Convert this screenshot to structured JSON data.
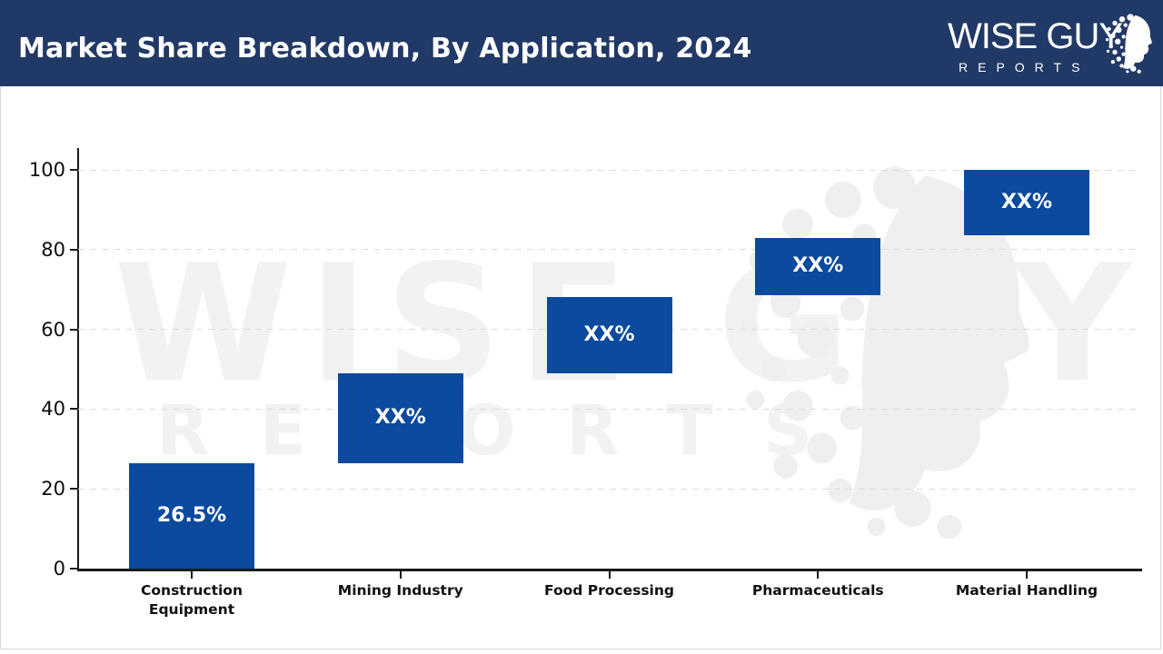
{
  "header": {
    "title": "Market Share Breakdown, By Application, 2024",
    "brand": {
      "line1": "WISE GUY",
      "line2": "REPORTS"
    }
  },
  "watermark": {
    "line1": "WISE GUY",
    "line2": "REPORTS"
  },
  "chart_data": {
    "type": "bar",
    "subtype": "waterfall-floating-bars",
    "title": "Market Share Breakdown, By Application, 2024",
    "categories": [
      "Construction Equipment",
      "Mining Industry",
      "Food Processing",
      "Pharmaceuticals",
      "Material Handling"
    ],
    "bars": [
      {
        "category": "Construction Equipment",
        "start": 0,
        "end": 26.5,
        "label": "26.5%"
      },
      {
        "category": "Mining Industry",
        "start": 26.5,
        "end": 49,
        "label": "XX%"
      },
      {
        "category": "Food Processing",
        "start": 49,
        "end": 68,
        "label": "XX%"
      },
      {
        "category": "Pharmaceuticals",
        "start": 68.5,
        "end": 83,
        "label": "XX%"
      },
      {
        "category": "Material Handling",
        "start": 83.5,
        "end": 100,
        "label": "XX%"
      }
    ],
    "xlabel": "",
    "ylabel": "",
    "ylim": [
      0,
      100
    ],
    "yticks": [
      0,
      20,
      40,
      60,
      80,
      100
    ],
    "grid": "horizontal-dashed",
    "legend": "none"
  },
  "colors": {
    "header_bg": "#213966",
    "bar_fill": "#0b4a9e",
    "bar_label": "#ffffff",
    "axis": "#1a1a1a",
    "grid": "#dcdcdc",
    "tick_text": "#0d0d0d",
    "category_text": "#111111",
    "watermark": "#f2f2f2",
    "panel_border": "#d9d9d9",
    "background": "#ffffff"
  }
}
